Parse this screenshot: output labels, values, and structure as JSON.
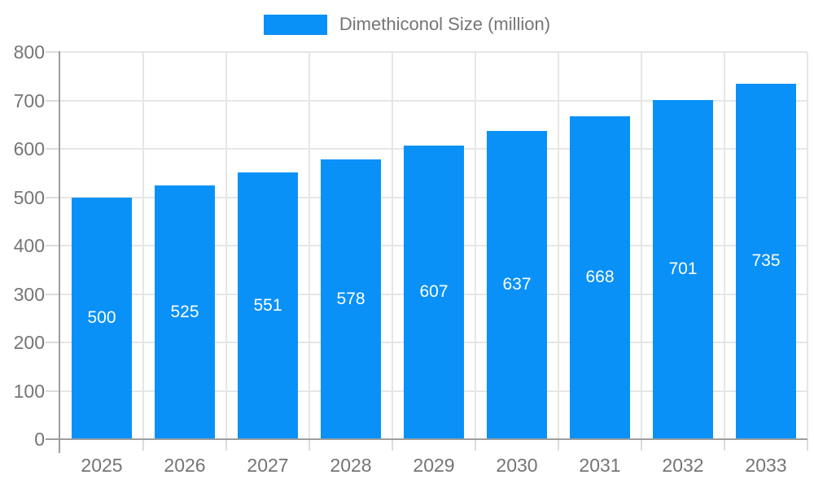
{
  "chart_data": {
    "type": "bar",
    "title": "",
    "series_name": "Dimethiconol Size (million)",
    "categories": [
      "2025",
      "2026",
      "2027",
      "2028",
      "2029",
      "2030",
      "2031",
      "2032",
      "2033"
    ],
    "values": [
      500,
      525,
      551,
      578,
      607,
      637,
      668,
      701,
      735
    ],
    "xlabel": "",
    "ylabel": "",
    "ylim": [
      0,
      800
    ],
    "yticks": [
      0,
      100,
      200,
      300,
      400,
      500,
      600,
      700,
      800
    ],
    "grid": true,
    "legend_position": "top-center",
    "value_labels": "inside-middle",
    "colors": {
      "bar": "#0991f8",
      "axis_text": "#757575",
      "value_label": "#ffffff",
      "axis_line": "#9e9e9e",
      "gridline": "#e6e6e6",
      "tick": "#dcdcdc",
      "background": "#ffffff"
    }
  }
}
